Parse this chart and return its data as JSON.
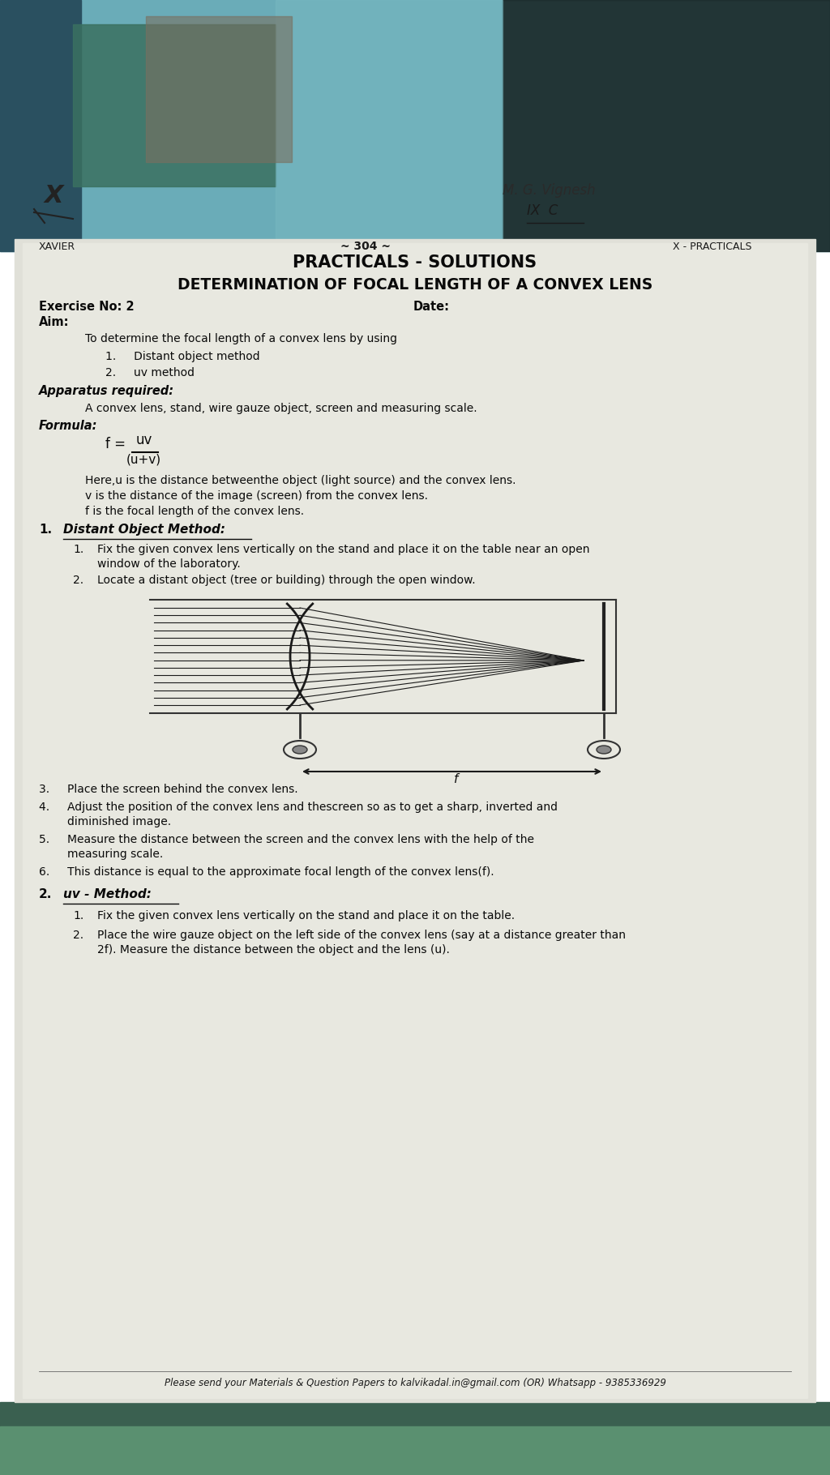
{
  "bg_top_color": "#5a9aaa",
  "paper_bg": "#ddddd5",
  "paper_inner": "#e5e5dd",
  "header_left": "XAVIER",
  "header_center": "~ 304 ~",
  "header_right": "X - PRACTICALS",
  "title1": "PRACTICALS - SOLUTIONS",
  "title2": "DETERMINATION OF FOCAL LENGTH OF A CONVEX LENS",
  "exercise": "Exercise No: 2",
  "date_label": "Date:",
  "aim_label": "Aim:",
  "aim_text": "To determine the focal length of a convex lens by using",
  "aim_item1": "1.     Distant object method",
  "aim_item2": "2.     uv method",
  "apparatus_label": "Apparatus required:",
  "apparatus_text": "A convex lens, stand, wire gauze object, screen and measuring scale.",
  "formula_label": "Formula:",
  "formula_desc1": "Here,u is the distance betweenthe object (light source) and the convex lens.",
  "formula_desc2": "v is the distance of the image (screen) from the convex lens.",
  "formula_desc3": "f is the focal length of the convex lens.",
  "m1_header_num": "1.",
  "m1_header": "Distant Object Method:",
  "m1_i1_num": "1.",
  "m1_i1": "Fix the given convex lens vertically on the stand and place it on the table near an open",
  "m1_i1b": "window of the laboratory.",
  "m1_i2_num": "2.",
  "m1_i2": "Locate a distant object (tree or building) through the open window.",
  "m1_i3": "3.     Place the screen behind the convex lens.",
  "m1_i4": "4.     Adjust the position of the convex lens and thescreen so as to get a sharp, inverted and",
  "m1_i4b": "        diminished image.",
  "m1_i5": "5.     Measure the distance between the screen and the convex lens with the help of the",
  "m1_i5b": "        measuring scale.",
  "m1_i6": "6.     This distance is equal to the approximate focal length of the convex lens(f).",
  "m2_header_num": "2.",
  "m2_header": "uv - Method:",
  "m2_i1_num": "1.",
  "m2_i1": "Fix the given convex lens vertically on the stand and place it on the table.",
  "m2_i2_num": "2.",
  "m2_i2": "Place the wire gauze object on the left side of the convex lens (say at a distance greater than",
  "m2_i2b": "2f). Measure the distance between the object and the lens (u).",
  "footer_text": "Please send your Materials & Question Papers to kalvikadal.in@gmail.com (OR) Whatsapp - 9385336929",
  "handwrite1": "M. G. Vignesh",
  "handwrite2": "IX  C",
  "sig": "X"
}
